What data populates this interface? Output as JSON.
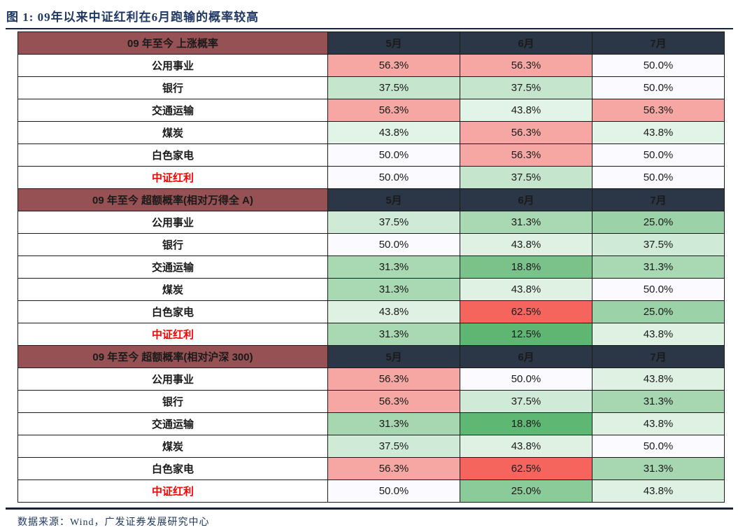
{
  "title": "图 1:  09年以来中证红利在6月跑输的概率较高",
  "footer": "数据来源：Wind，广发证券发展研究中心",
  "colors": {
    "title_text": "#1f3864",
    "rule": "#17233d",
    "grid_border": "#1a1a1a",
    "section_header_bg": "#955153",
    "month_header_bg": "#2b3747",
    "header_text": "#ffffff",
    "highlight_label_text": "#ff0000"
  },
  "chart_data": {
    "type": "table",
    "title": "图 1:  09年以来中证红利在6月跑输的概率较高",
    "columns": [
      "5月",
      "6月",
      "7月"
    ],
    "legend_note": "heatmap shading: green = low probability, white ≈ 50%, red = high probability",
    "sections": [
      {
        "header": "09 年至今  上涨概率",
        "rows": [
          {
            "label": "公用事业",
            "highlight": false,
            "values": [
              "56.3%",
              "56.3%",
              "50.0%"
            ],
            "cell_colors": [
              "#f7a7a3",
              "#f7a7a3",
              "#fbfaff"
            ]
          },
          {
            "label": "银行",
            "highlight": false,
            "values": [
              "37.5%",
              "37.5%",
              "50.0%"
            ],
            "cell_colors": [
              "#c5e6cd",
              "#c5e6cd",
              "#fbfaff"
            ]
          },
          {
            "label": "交通运输",
            "highlight": false,
            "values": [
              "56.3%",
              "43.8%",
              "56.3%"
            ],
            "cell_colors": [
              "#f7a7a3",
              "#e2f3e7",
              "#f7a7a3"
            ]
          },
          {
            "label": "煤炭",
            "highlight": false,
            "values": [
              "43.8%",
              "56.3%",
              "43.8%"
            ],
            "cell_colors": [
              "#e2f3e7",
              "#f7a7a3",
              "#e2f3e7"
            ]
          },
          {
            "label": "白色家电",
            "highlight": false,
            "values": [
              "50.0%",
              "56.3%",
              "50.0%"
            ],
            "cell_colors": [
              "#fbfaff",
              "#f7a7a3",
              "#fbfaff"
            ]
          },
          {
            "label": "中证红利",
            "highlight": true,
            "values": [
              "50.0%",
              "37.5%",
              "50.0%"
            ],
            "cell_colors": [
              "#fbfaff",
              "#c5e6cd",
              "#fbfaff"
            ]
          }
        ]
      },
      {
        "header": "09 年至今  超额概率(相对万得全 A)",
        "rows": [
          {
            "label": "公用事业",
            "highlight": false,
            "values": [
              "37.5%",
              "31.3%",
              "25.0%"
            ],
            "cell_colors": [
              "#cfead6",
              "#a9d9b3",
              "#9bd2a7"
            ]
          },
          {
            "label": "银行",
            "highlight": false,
            "values": [
              "50.0%",
              "43.8%",
              "37.5%"
            ],
            "cell_colors": [
              "#fbfaff",
              "#def1e3",
              "#cfead6"
            ]
          },
          {
            "label": "交通运输",
            "highlight": false,
            "values": [
              "31.3%",
              "18.8%",
              "31.3%"
            ],
            "cell_colors": [
              "#a9d9b3",
              "#7ac28a",
              "#a9d9b3"
            ]
          },
          {
            "label": "煤炭",
            "highlight": false,
            "values": [
              "31.3%",
              "43.8%",
              "50.0%"
            ],
            "cell_colors": [
              "#a9d9b3",
              "#def1e3",
              "#fbfaff"
            ]
          },
          {
            "label": "白色家电",
            "highlight": false,
            "values": [
              "43.8%",
              "62.5%",
              "25.0%"
            ],
            "cell_colors": [
              "#def1e3",
              "#f5655e",
              "#9bd2a7"
            ]
          },
          {
            "label": "中证红利",
            "highlight": true,
            "values": [
              "31.3%",
              "12.5%",
              "43.8%"
            ],
            "cell_colors": [
              "#a9d9b3",
              "#5fb673",
              "#def1e3"
            ]
          }
        ]
      },
      {
        "header": "09 年至今  超额概率(相对沪深 300)",
        "rows": [
          {
            "label": "公用事业",
            "highlight": false,
            "values": [
              "56.3%",
              "50.0%",
              "43.8%"
            ],
            "cell_colors": [
              "#f7a7a3",
              "#fbfaff",
              "#def1e3"
            ]
          },
          {
            "label": "银行",
            "highlight": false,
            "values": [
              "56.3%",
              "37.5%",
              "31.3%"
            ],
            "cell_colors": [
              "#f7a7a3",
              "#cfead6",
              "#a6d7b0"
            ]
          },
          {
            "label": "交通运输",
            "highlight": false,
            "values": [
              "31.3%",
              "18.8%",
              "43.8%"
            ],
            "cell_colors": [
              "#a6d7b0",
              "#5eb873",
              "#def1e3"
            ]
          },
          {
            "label": "煤炭",
            "highlight": false,
            "values": [
              "37.5%",
              "43.8%",
              "50.0%"
            ],
            "cell_colors": [
              "#cfead6",
              "#def1e3",
              "#fbfaff"
            ]
          },
          {
            "label": "白色家电",
            "highlight": false,
            "values": [
              "56.3%",
              "62.5%",
              "31.3%"
            ],
            "cell_colors": [
              "#f7a7a3",
              "#f5655e",
              "#a6d7b0"
            ]
          },
          {
            "label": "中证红利",
            "highlight": true,
            "values": [
              "50.0%",
              "25.0%",
              "43.8%"
            ],
            "cell_colors": [
              "#fbfaff",
              "#8bca99",
              "#def1e3"
            ]
          }
        ]
      }
    ]
  }
}
